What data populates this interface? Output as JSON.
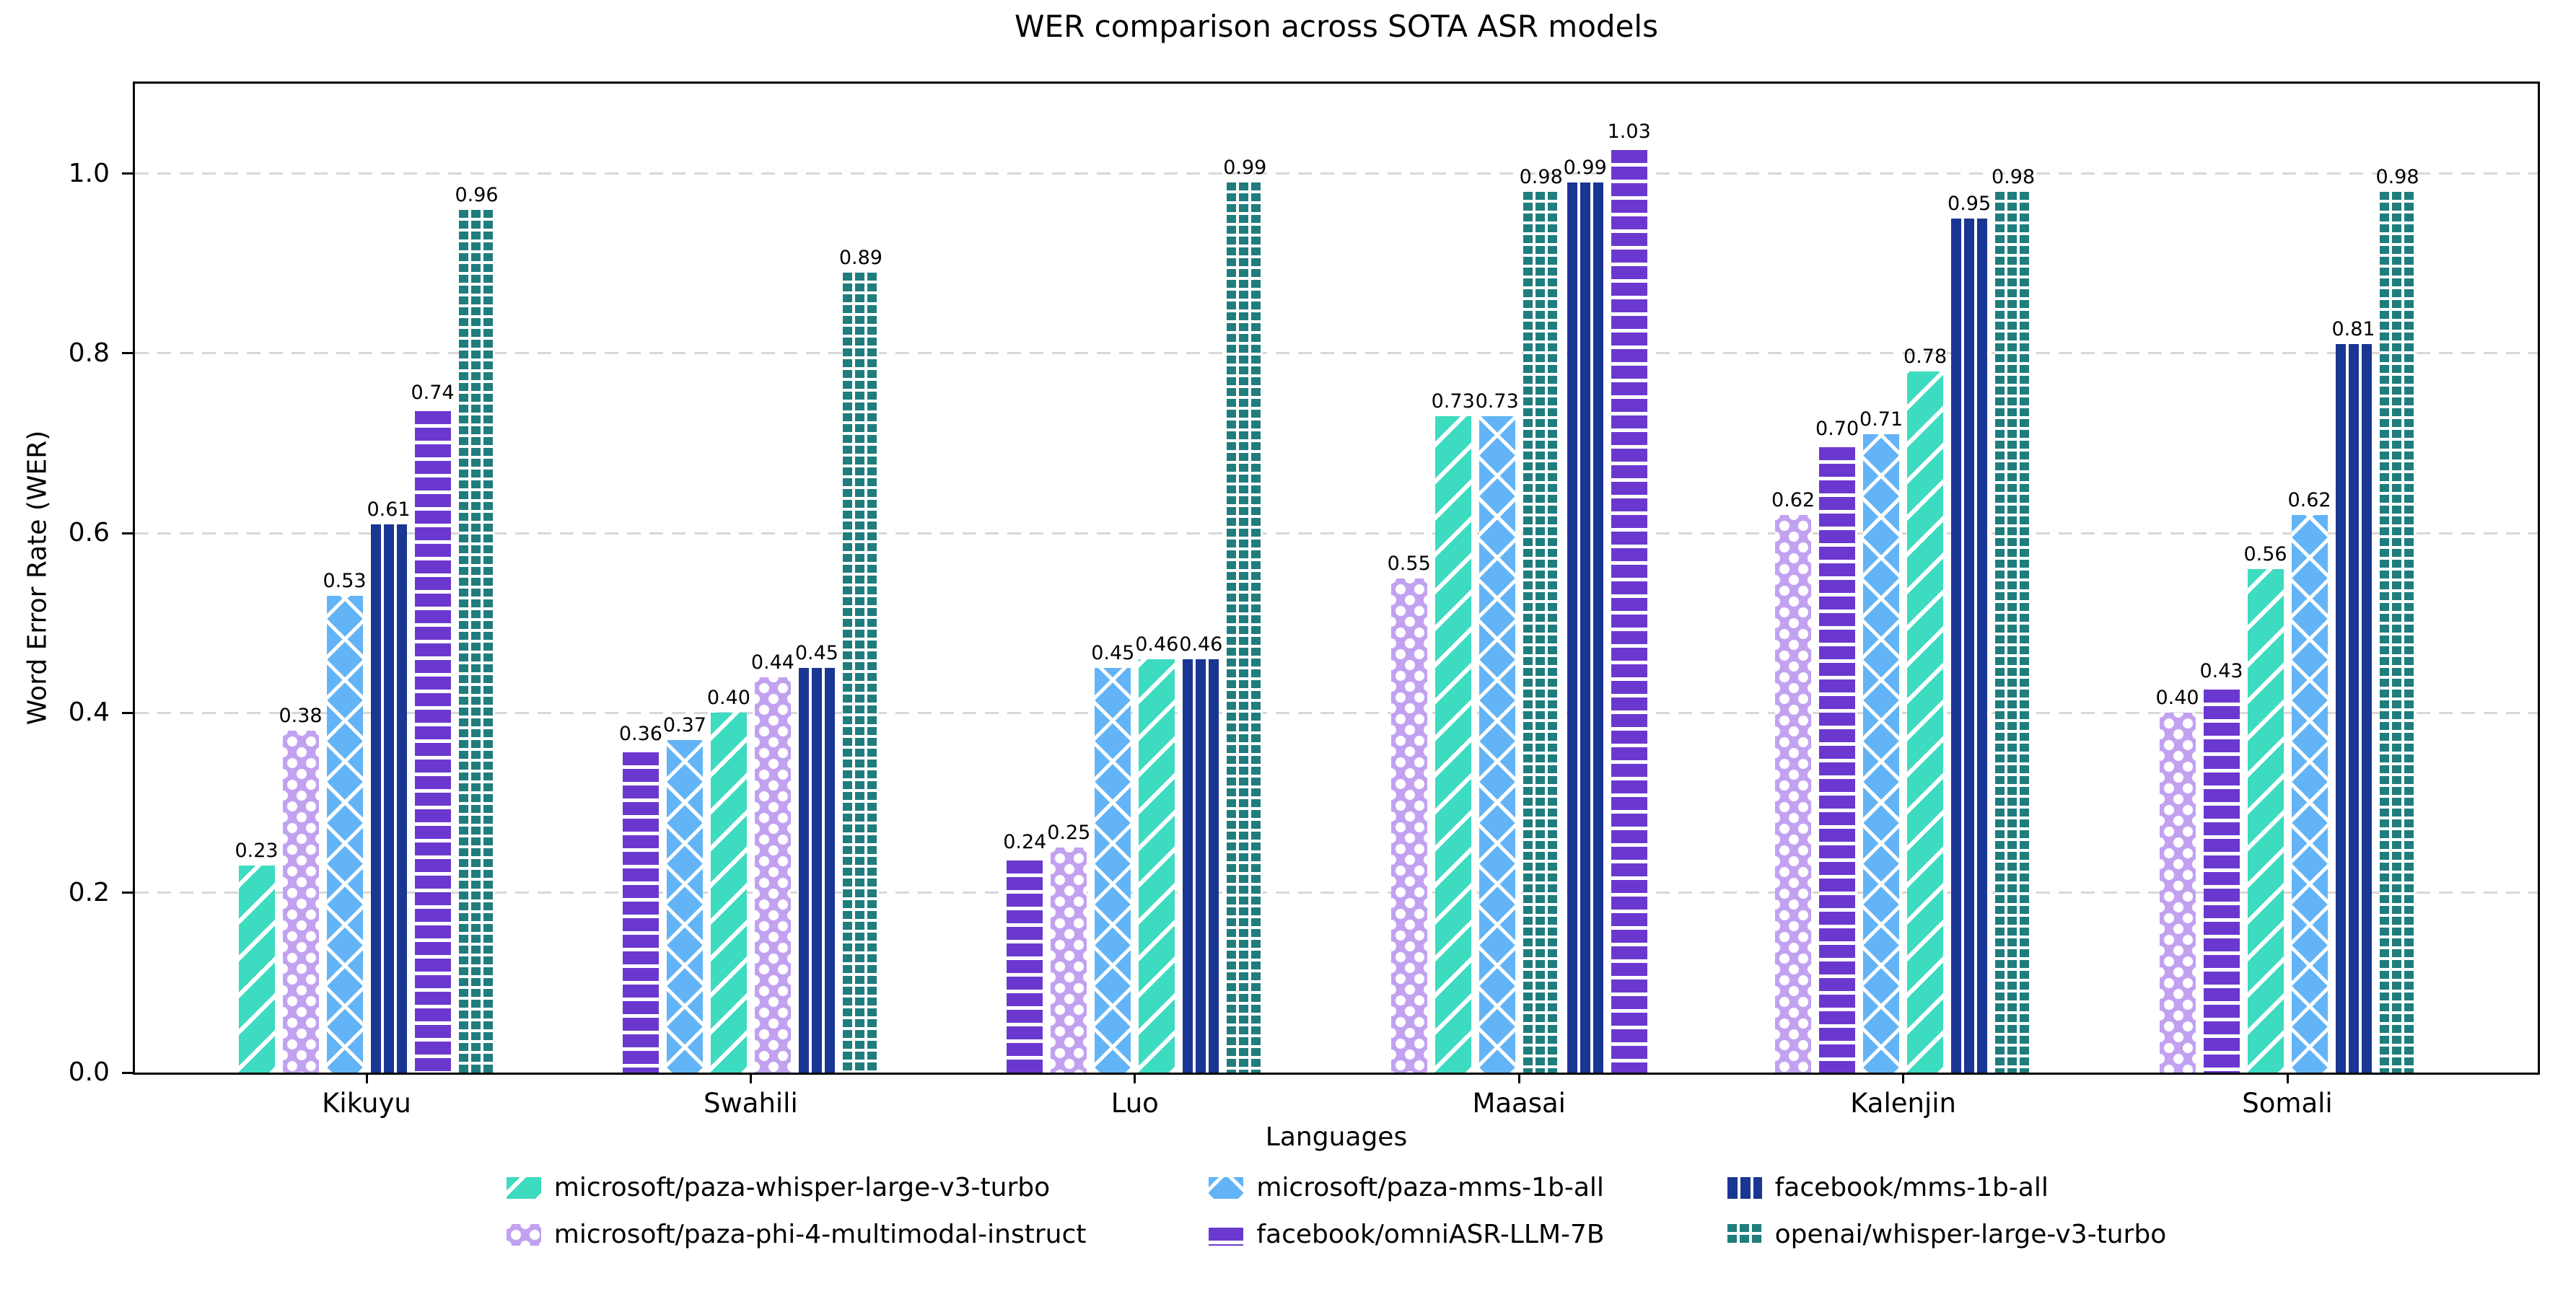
{
  "chart_data": {
    "type": "bar",
    "title": "WER comparison across SOTA ASR models",
    "xlabel": "Languages",
    "ylabel": "Word Error Rate (WER)",
    "ylim": [
      0,
      1.1
    ],
    "yticks": [
      "0.0",
      "0.2",
      "0.4",
      "0.6",
      "0.8",
      "1.0"
    ],
    "grid": "horizontal dashed light-gray",
    "legend_position": "below-chart, 3 columns",
    "bar_order_note": "bars sorted ascending by value within each language group",
    "value_label_format": "0.00",
    "background_color": "#ffffff",
    "grid_color": "#d8d8d8",
    "spine_color": "#000000",
    "hatch_color": "#ffffff",
    "categories": [
      "Kikuyu",
      "Swahili",
      "Luo",
      "Maasai",
      "Kalenjin",
      "Somali"
    ],
    "series": [
      {
        "name": "microsoft/paza-whisper-large-v3-turbo",
        "pattern": "diagonal",
        "color": "#3DDBC0",
        "values": [
          0.23,
          0.4,
          0.46,
          0.73,
          0.78,
          0.56
        ]
      },
      {
        "name": "microsoft/paza-phi-4-multimodal-instruct",
        "pattern": "dots",
        "color": "#C1A1F0",
        "values": [
          0.38,
          0.44,
          0.25,
          0.55,
          0.62,
          0.4
        ]
      },
      {
        "name": "microsoft/paza-mms-1b-all",
        "pattern": "crosshatch",
        "color": "#63B4F6",
        "values": [
          0.53,
          0.37,
          0.45,
          0.73,
          0.71,
          0.62
        ]
      },
      {
        "name": "facebook/omniASR-LLM-7B",
        "pattern": "horizontal",
        "color": "#6B38CF",
        "values": [
          0.74,
          0.36,
          0.24,
          1.03,
          0.7,
          0.43
        ]
      },
      {
        "name": "facebook/mms-1b-all",
        "pattern": "vertical",
        "color": "#1A3693",
        "values": [
          0.61,
          0.45,
          0.46,
          0.99,
          0.95,
          0.81
        ]
      },
      {
        "name": "openai/whisper-large-v3-turbo",
        "pattern": "grid",
        "color": "#1F7D7D",
        "values": [
          0.96,
          0.89,
          0.99,
          0.98,
          0.98,
          0.98
        ]
      }
    ]
  },
  "legend": {
    "columns": [
      [
        0,
        1
      ],
      [
        2,
        3
      ],
      [
        4,
        5
      ]
    ]
  }
}
